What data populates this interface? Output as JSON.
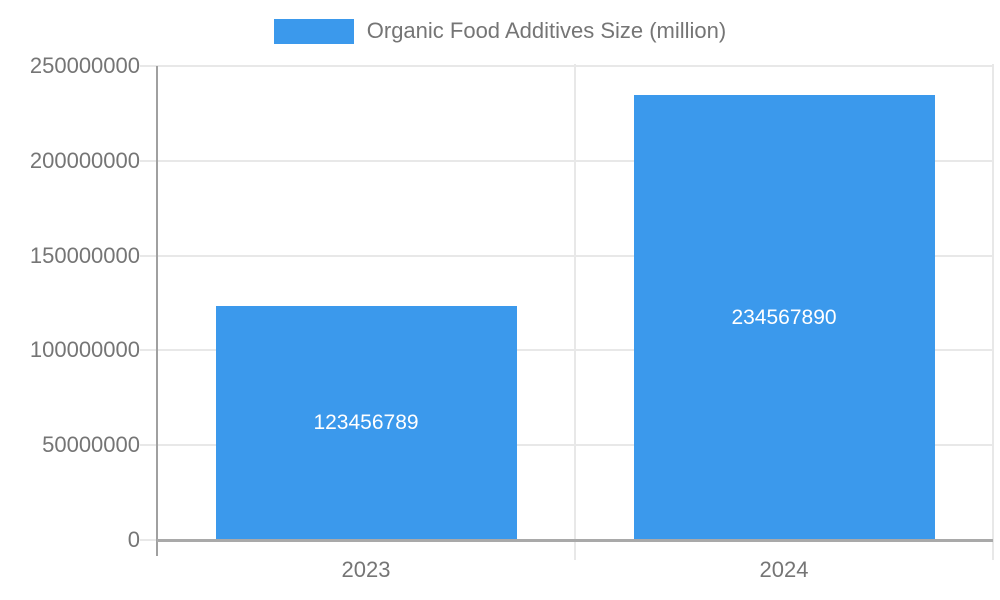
{
  "chart_data": {
    "type": "bar",
    "title": "Organic Food Additives Size (million)",
    "categories": [
      "2023",
      "2024"
    ],
    "values": [
      123456789,
      234567890
    ],
    "bar_value_labels": [
      "123456789",
      "234567890"
    ],
    "ylim": [
      0,
      250000000
    ],
    "ytick_step": 50000000,
    "ytick_labels": [
      "0",
      "50000000",
      "100000000",
      "150000000",
      "200000000",
      "250000000"
    ],
    "xlabel": "",
    "ylabel": "",
    "grid": true,
    "legend": {
      "position": "top",
      "label": "Organic Food Additives Size (million)"
    },
    "colors": {
      "bar": "#3B99EC",
      "gridline": "#E8E8E8",
      "axis_line": "#A0A0A0",
      "baseline": "#A9A9A9",
      "axis_text": "#757575",
      "bar_label_text": "#FFFFFF"
    }
  }
}
